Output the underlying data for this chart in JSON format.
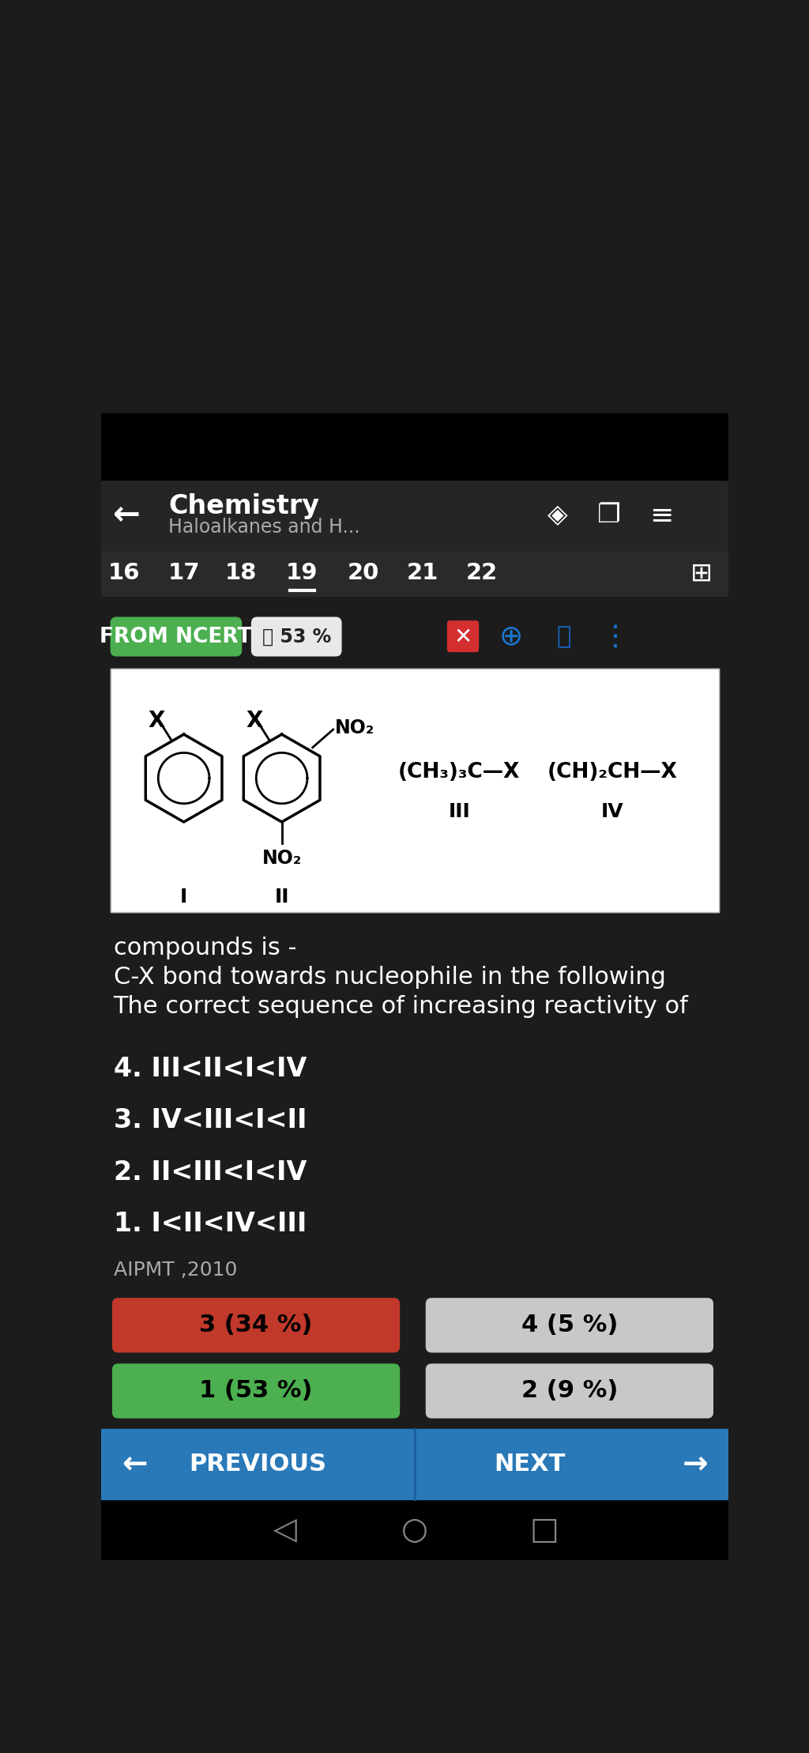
{
  "bg_color": "#1c1c1c",
  "header_bg": "#252525",
  "nav_bar_bg": "#2a2a2a",
  "white": "#ffffff",
  "black": "#000000",
  "green": "#4CAF50",
  "red": "#c0392b",
  "light_gray": "#c8c8c8",
  "dark_gray": "#3a3a3a",
  "blue_btn": "#2979b8",
  "title_text": "Chemistry",
  "subtitle_text": "Haloalkanes and H...",
  "nav_numbers": [
    "16",
    "17",
    "18",
    "19",
    "20",
    "21",
    "22"
  ],
  "selected_nav": 3,
  "question_text_lines": [
    "The correct sequence of increasing reactivity of",
    "C-X bond towards nucleophile in the following",
    "compounds is -"
  ],
  "options": [
    "1. I<II<IV<III",
    "2. II<III<I<IV",
    "3. IV<III<I<II",
    "4. III<II<I<IV"
  ],
  "source_text": "AIPMT ,2010",
  "answer_buttons": [
    {
      "label": "1 (53 %)",
      "color": "#4CAF50",
      "text_color": "#000000"
    },
    {
      "label": "2 (9 %)",
      "color": "#c8c8c8",
      "text_color": "#000000"
    },
    {
      "label": "3 (34 %)",
      "color": "#c0392b",
      "text_color": "#000000"
    },
    {
      "label": "4 (5 %)",
      "color": "#c8c8c8",
      "text_color": "#000000"
    }
  ],
  "bottom_bar_color": "#2979b8",
  "prev_text": "PREVIOUS",
  "next_text": "NEXT",
  "sys_nav_color": "#000000"
}
